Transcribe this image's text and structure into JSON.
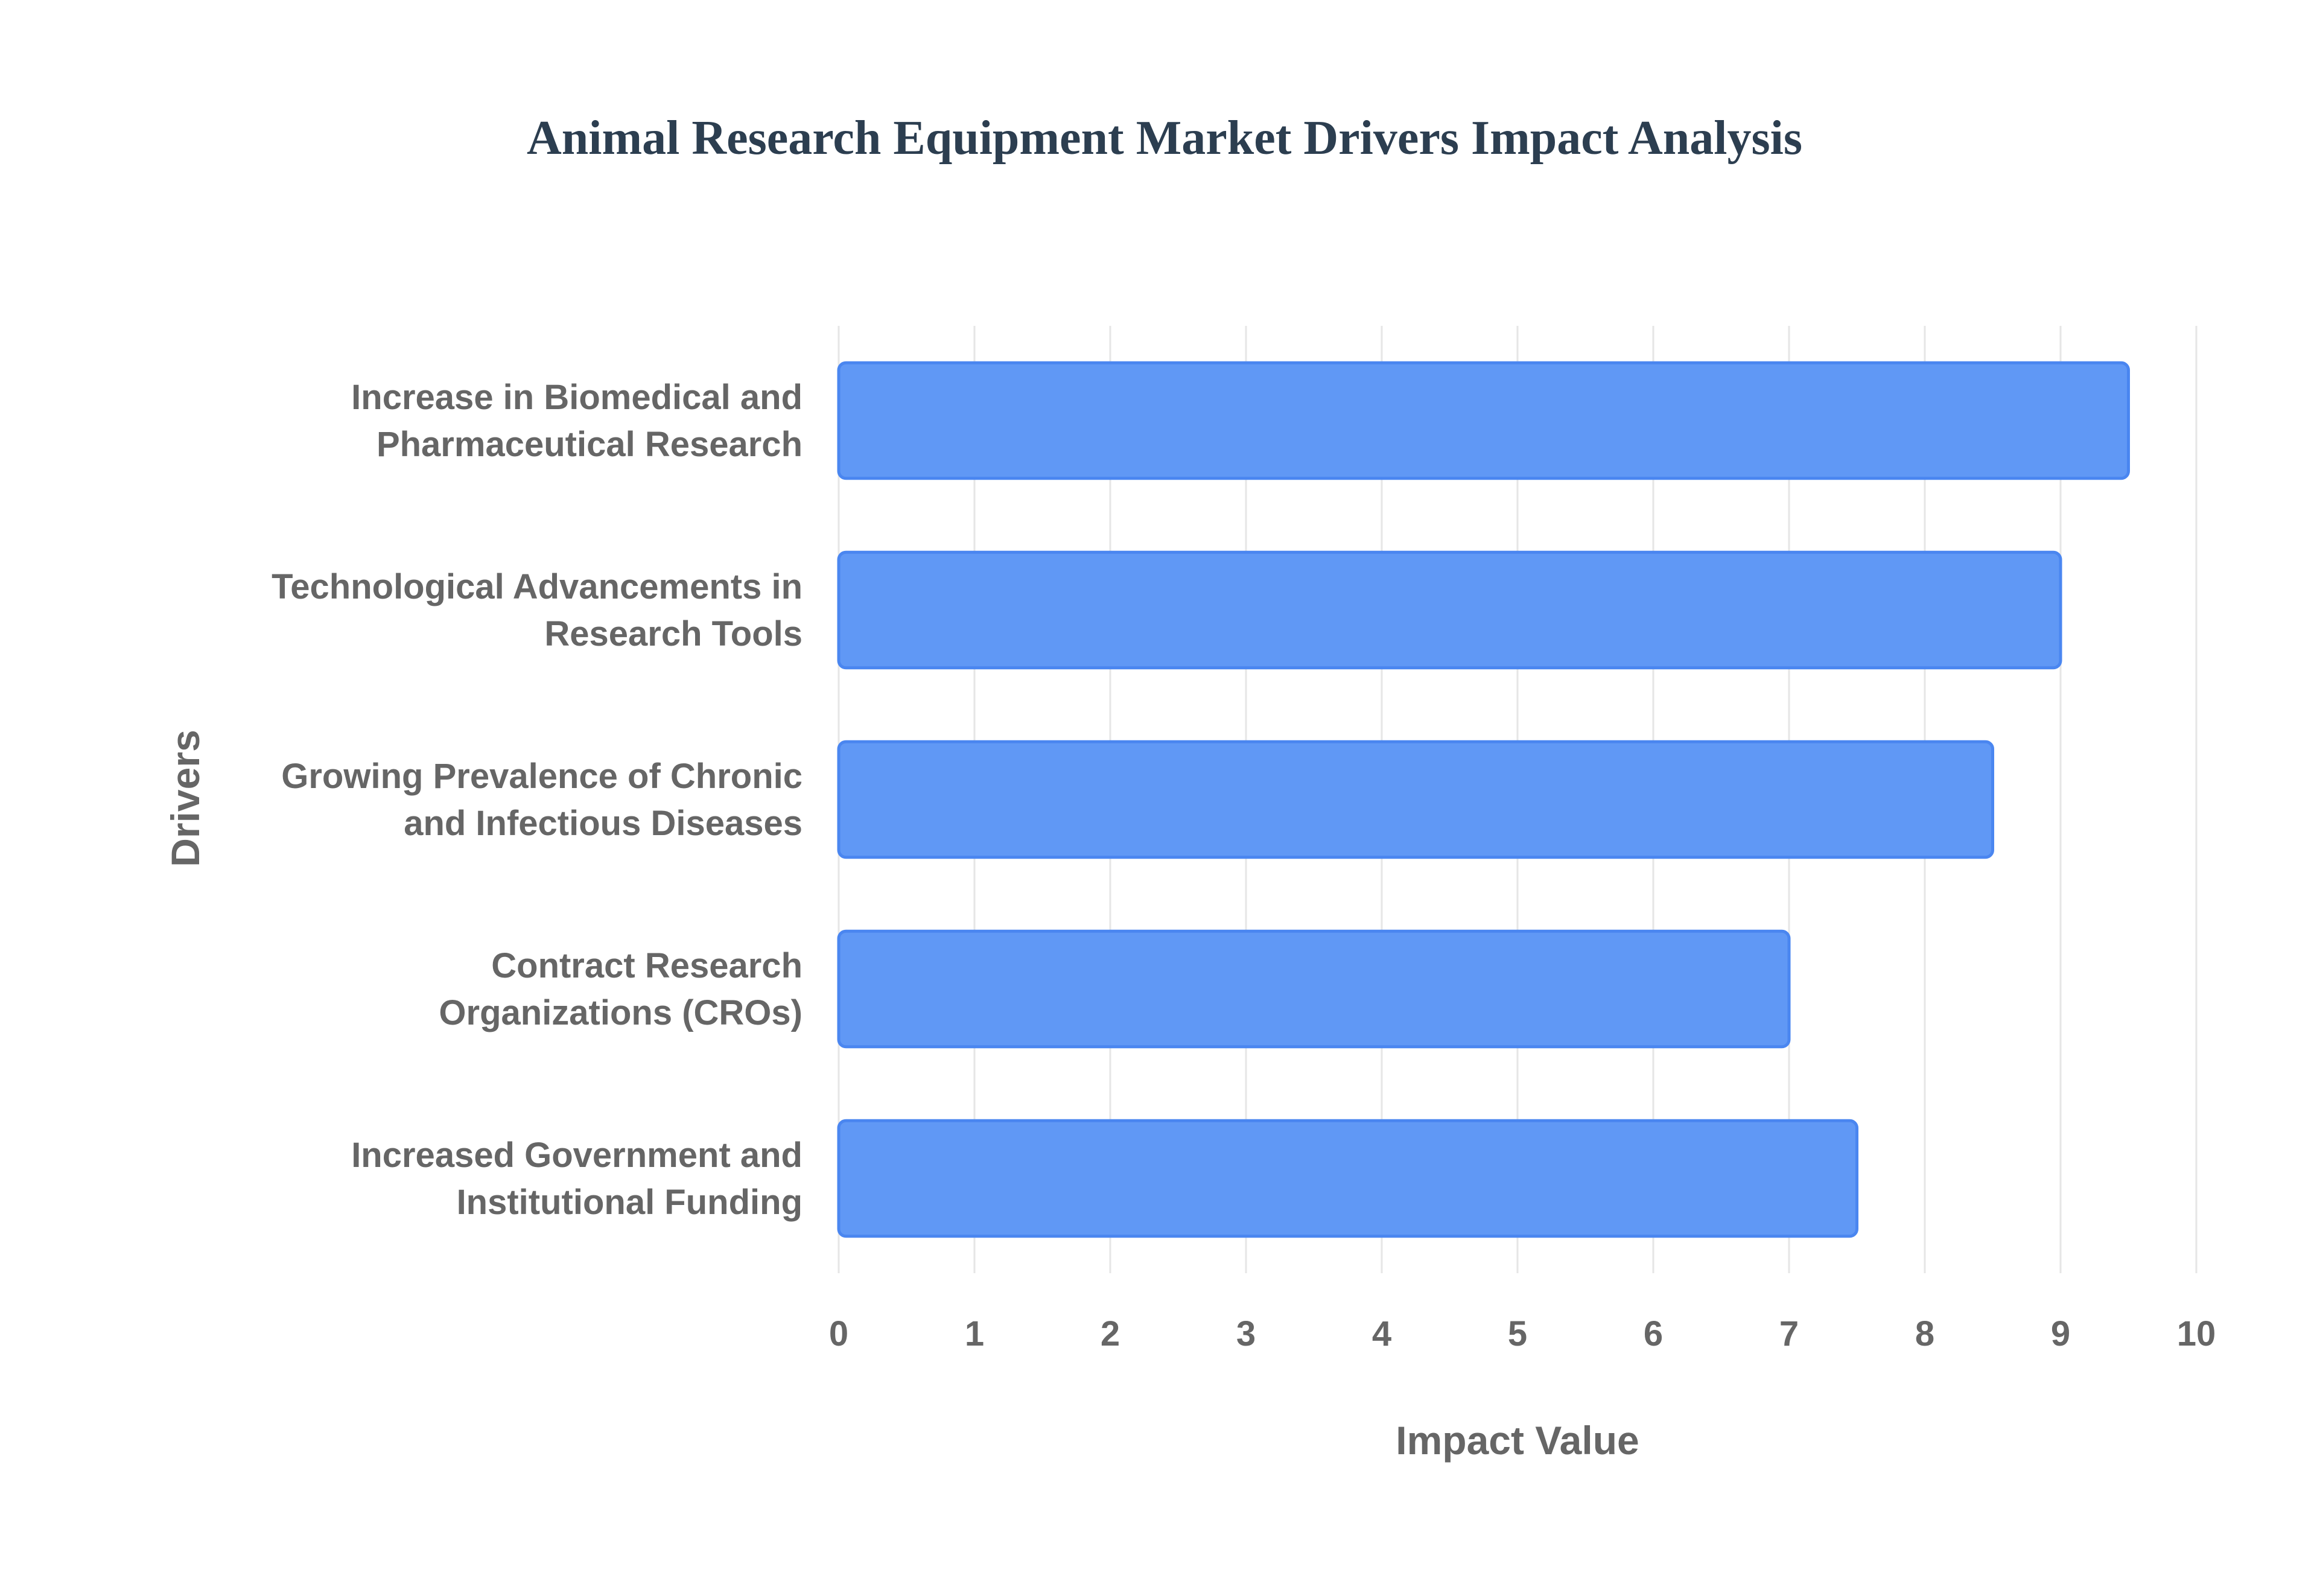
{
  "chart_data": {
    "type": "bar",
    "orientation": "horizontal",
    "title": "Animal Research Equipment Market Drivers Impact Analysis",
    "xlabel": "Impact Value",
    "ylabel": "Drivers",
    "xlim": [
      0,
      10
    ],
    "ticks": [
      0,
      1,
      2,
      3,
      4,
      5,
      6,
      7,
      8,
      9,
      10
    ],
    "grid": true,
    "categories": [
      [
        "Increase in Biomedical and",
        "Pharmaceutical Research"
      ],
      [
        "Technological Advancements in",
        "Research Tools"
      ],
      [
        "Growing Prevalence of Chronic",
        "and Infectious Diseases"
      ],
      [
        "Contract Research",
        "Organizations (CROs)"
      ],
      [
        "Increased Government and",
        "Institutional Funding"
      ]
    ],
    "values": [
      9.5,
      9,
      8.5,
      7,
      7.5
    ],
    "colors": {
      "bar_fill": "#6098f5",
      "bar_stroke": "#4a86f0"
    }
  }
}
